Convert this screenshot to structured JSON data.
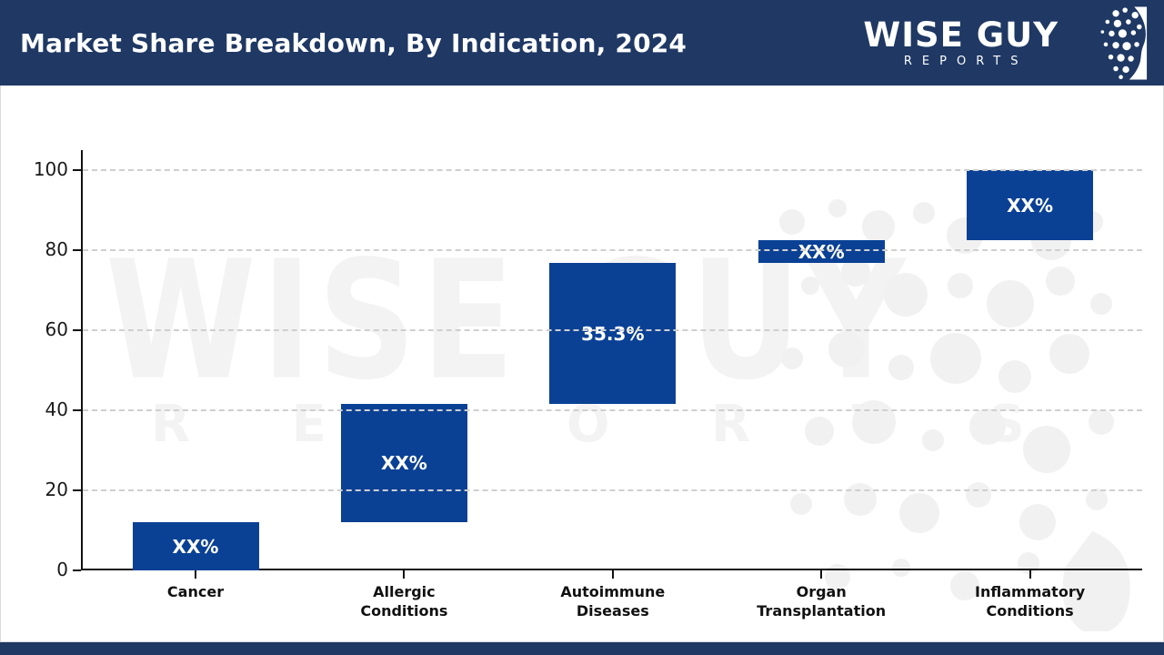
{
  "header": {
    "title": "Market Share Breakdown, By Indication, 2024",
    "bg_color": "#1f3864",
    "logo": {
      "line1": "WISE GUY",
      "line2": "REPORTS"
    }
  },
  "watermark": {
    "line1": "WISE GUY",
    "line2": "R E P O R T S"
  },
  "chart_data": {
    "type": "bar",
    "variant": "waterfall",
    "title": "Market Share Breakdown, By Indication, 2024",
    "categories": [
      "Cancer",
      "Allergic\nConditions",
      "Autoimmune\nDiseases",
      "Organ\nTransplantation",
      "Inflammatory\nConditions"
    ],
    "segments": [
      {
        "category": "Cancer",
        "start": 0,
        "end": 12,
        "label": "XX%"
      },
      {
        "category": "Allergic Conditions",
        "start": 12,
        "end": 41.5,
        "label": "XX%"
      },
      {
        "category": "Autoimmune Diseases",
        "start": 41.5,
        "end": 76.8,
        "label": "35.3%"
      },
      {
        "category": "Organ Transplantation",
        "start": 76.8,
        "end": 82.5,
        "label": "XX%"
      },
      {
        "category": "Inflammatory Conditions",
        "start": 82.5,
        "end": 100,
        "label": "XX%"
      }
    ],
    "ylabel": "",
    "xlabel": "",
    "ylim": [
      0,
      105
    ],
    "yticks": [
      0,
      20,
      40,
      60,
      80,
      100
    ],
    "grid": "horizontal-dashed",
    "legend": "none",
    "bar_color": "#0a4195",
    "bar_label_color": "#ffffff"
  }
}
